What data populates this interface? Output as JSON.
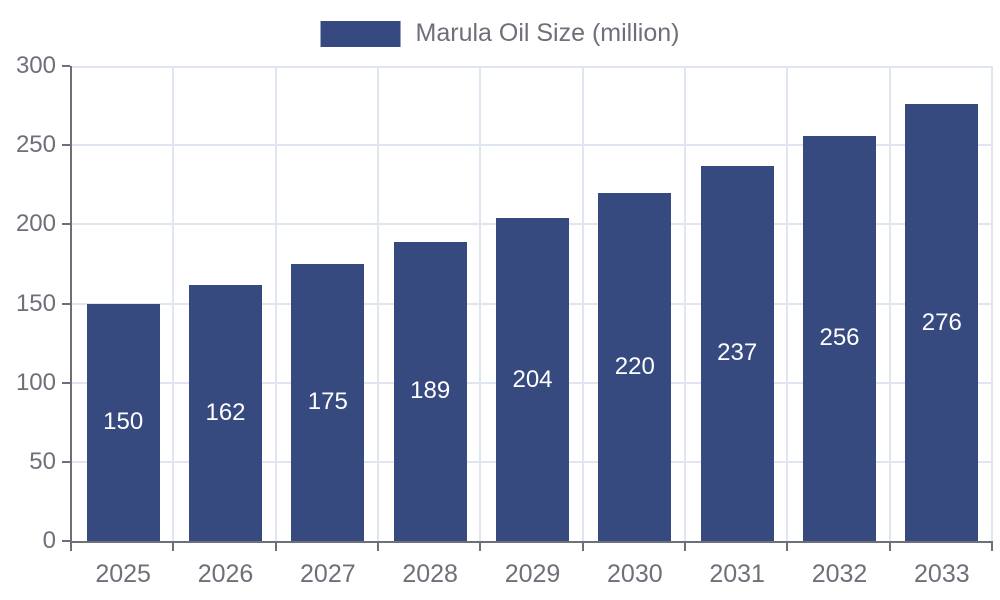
{
  "chart_data": {
    "type": "bar",
    "title": "",
    "legend": {
      "label": "Marula Oil Size (million)",
      "position": "top"
    },
    "categories": [
      "2025",
      "2026",
      "2027",
      "2028",
      "2029",
      "2030",
      "2031",
      "2032",
      "2033"
    ],
    "series": [
      {
        "name": "Marula Oil Size (million)",
        "values": [
          150,
          162,
          175,
          189,
          204,
          220,
          237,
          256,
          276
        ]
      }
    ],
    "value_labels": [
      "150",
      "162",
      "175",
      "189",
      "204",
      "220",
      "237",
      "256",
      "276"
    ],
    "xlabel": "",
    "ylabel": "",
    "ylim": [
      0,
      300
    ],
    "yticks": [
      0,
      50,
      100,
      150,
      200,
      250,
      300
    ],
    "grid": true,
    "colors": {
      "bar": "#374A80",
      "bar_label": "#FFFFFF",
      "gridline": "#E0E6F1",
      "axis_line": "#6E7079",
      "axis_text": "#6E7079"
    }
  }
}
